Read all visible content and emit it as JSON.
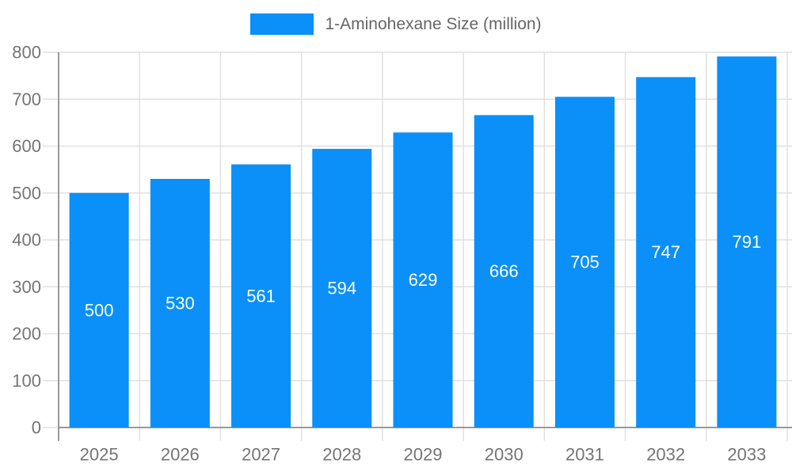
{
  "legend": {
    "label": "1-Aminohexane Size (million)"
  },
  "colors": {
    "bar": "#0a90f8",
    "grid": "#e0e0e0",
    "axis": "#999999",
    "tick_text": "#757575",
    "legend_text": "#666666",
    "value_text": "#ffffff",
    "background": "#ffffff"
  },
  "chart_data": {
    "type": "bar",
    "title": "",
    "series_name": "1-Aminohexane Size (million)",
    "categories": [
      "2025",
      "2026",
      "2027",
      "2028",
      "2029",
      "2030",
      "2031",
      "2032",
      "2033"
    ],
    "values": [
      500,
      530,
      561,
      594,
      629,
      666,
      705,
      747,
      791
    ],
    "xlabel": "",
    "ylabel": "",
    "ylim": [
      0,
      800
    ],
    "yticks": [
      0,
      100,
      200,
      300,
      400,
      500,
      600,
      700,
      800
    ],
    "grid": true,
    "legend_position": "top",
    "value_label_position": "inside-middle"
  }
}
